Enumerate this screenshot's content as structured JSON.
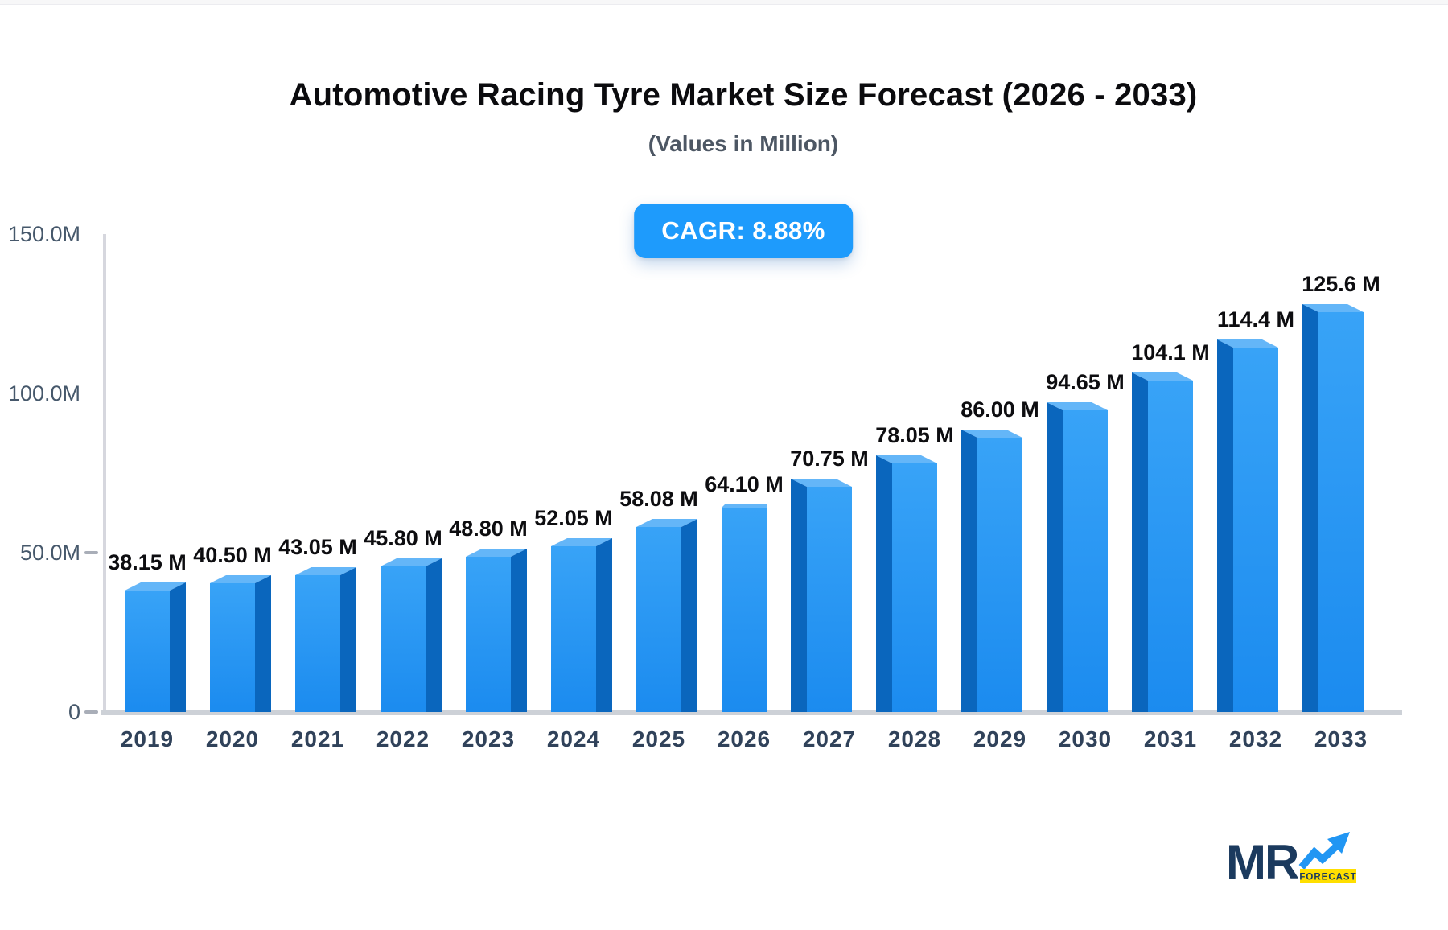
{
  "header": {
    "title": "Automotive Racing Tyre Market Size Forecast (2026 - 2033)",
    "subtitle": "(Values in Million)",
    "badge": {
      "label": "CAGR: 8.88%",
      "bg": "#1e9bfc",
      "text_color": "#ffffff"
    }
  },
  "chart_data": {
    "type": "bar",
    "title": "Automotive Racing Tyre Market Size Forecast (2026 - 2033)",
    "subtitle": "(Values in Million)",
    "unit": "Million",
    "categories": [
      "2019",
      "2020",
      "2021",
      "2022",
      "2023",
      "2024",
      "2025",
      "2026",
      "2027",
      "2028",
      "2029",
      "2030",
      "2031",
      "2032",
      "2033"
    ],
    "values": [
      38.15,
      40.5,
      43.05,
      45.8,
      48.8,
      52.05,
      58.08,
      64.1,
      70.75,
      78.05,
      86.0,
      94.65,
      104.1,
      114.4,
      125.6
    ],
    "value_labels": [
      "38.15 M",
      "40.50 M",
      "43.05 M",
      "45.80 M",
      "48.80 M",
      "52.05 M",
      "58.08 M",
      "64.10 M",
      "70.75 M",
      "78.05 M",
      "86.00 M",
      "94.65 M",
      "104.1 M",
      "114.4 M",
      "125.6 M"
    ],
    "xlabel": "",
    "ylabel": "",
    "ylim": [
      0,
      150
    ],
    "grid": false,
    "legend": false,
    "y_ticks": [
      {
        "label": "150.0M",
        "value": 150,
        "dash": false
      },
      {
        "label": "100.0M",
        "value": 100,
        "dash": false
      },
      {
        "label": "50.0M",
        "value": 50,
        "dash": true
      },
      {
        "label": "0",
        "value": 0,
        "dash": true
      }
    ],
    "colors": {
      "bar_face_top": "#38a3f7",
      "bar_face_bottom": "#1b8bef",
      "bar_side": "#0a66bd",
      "bar_top_face": "#64b6f8",
      "axis_line": "#d6d7de",
      "baseline": "#cdd1d7",
      "value_label": "#0d0d10",
      "year_label": "#30425a",
      "y_label": "#46586b"
    }
  },
  "logo": {
    "text": "MR",
    "sub_label": "FORECAST",
    "navy": "#1b3a5e",
    "yellow": "#ffdf00",
    "arrow_blue": "#2196f3"
  }
}
